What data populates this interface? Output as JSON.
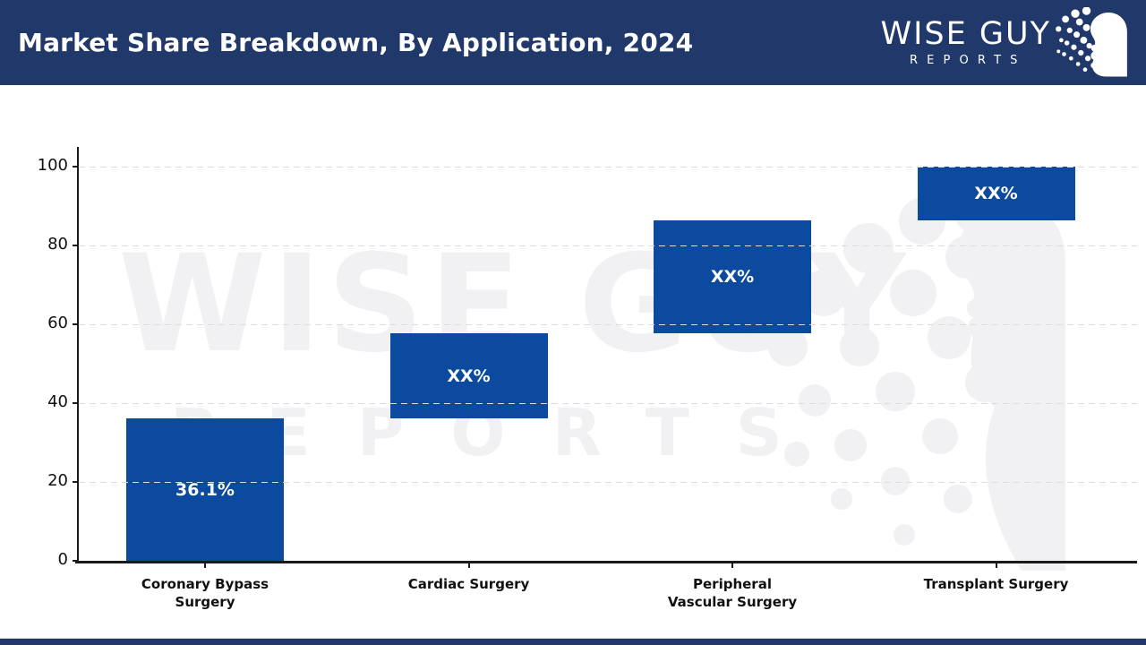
{
  "header": {
    "title": "Market Share Breakdown, By Application, 2024",
    "logo": {
      "line1": "WISE GUY",
      "line2": "REPORTS"
    }
  },
  "watermark": {
    "line1": "WISE GUY",
    "line2": "REPORTS"
  },
  "chart_data": {
    "type": "bar",
    "subtype": "waterfall",
    "title": "Market Share Breakdown, By Application, 2024",
    "categories": [
      "Coronary Bypass\nSurgery",
      "Cardiac Surgery",
      "Peripheral\nVascular Surgery",
      "Transplant Surgery"
    ],
    "segments": [
      {
        "category": "Coronary Bypass Surgery",
        "start": 0,
        "end": 36.1,
        "label": "36.1%"
      },
      {
        "category": "Cardiac Surgery",
        "start": 36.1,
        "end": 57.7,
        "label": "XX%"
      },
      {
        "category": "Peripheral Vascular Surgery",
        "start": 57.7,
        "end": 86.4,
        "label": "XX%"
      },
      {
        "category": "Transplant Surgery",
        "start": 86.4,
        "end": 100,
        "label": "XX%"
      }
    ],
    "yticks": [
      0,
      20,
      40,
      60,
      80,
      100
    ],
    "ylim": [
      0,
      105
    ],
    "xlabel": "",
    "ylabel": "",
    "grid": true,
    "legend": false,
    "bar_color": "#0B4A9E",
    "colors": {
      "header_bg": "#21386B",
      "grid": "#DBDBDB",
      "axis": "#1A1A1A",
      "tick_text": "#111111",
      "bar_label_text": "#FFFFFF",
      "watermark": "#F1F1F4"
    }
  }
}
